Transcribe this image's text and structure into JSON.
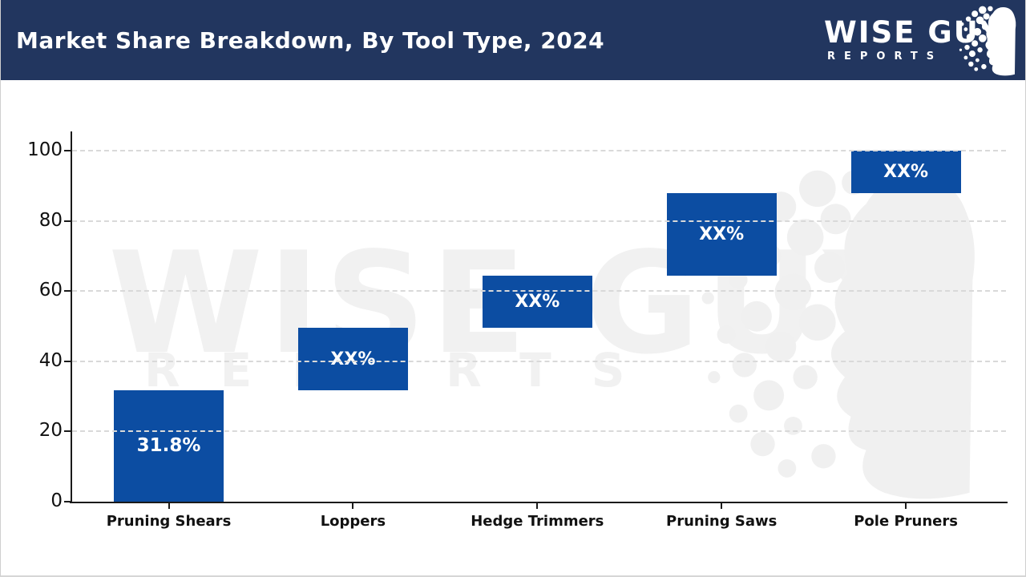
{
  "header": {
    "title": "Market Share Breakdown, By Tool Type, 2024",
    "bg_color": "#22365F",
    "logo": {
      "brand": "WISE GUY",
      "sub": "REPORTS",
      "face_icon": "dotted-face-profile"
    }
  },
  "watermark": {
    "brand": "WISE GUY",
    "sub": "REPORTS",
    "face_icon": "dotted-face-profile"
  },
  "chart_data": {
    "type": "bar",
    "variant": "floating-waterfall",
    "title": "Market Share Breakdown, By Tool Type, 2024",
    "categories": [
      "Pruning Shears",
      "Loppers",
      "Hedge Trimmers",
      "Pruning Saws",
      "Pole Pruners"
    ],
    "bars": [
      {
        "category": "Pruning Shears",
        "start": 0,
        "end": 31.8,
        "label": "31.8%"
      },
      {
        "category": "Loppers",
        "start": 31.8,
        "end": 49.5,
        "label": "XX%"
      },
      {
        "category": "Hedge Trimmers",
        "start": 49.5,
        "end": 64.5,
        "label": "XX%"
      },
      {
        "category": "Pruning Saws",
        "start": 64.5,
        "end": 88,
        "label": "XX%"
      },
      {
        "category": "Pole Pruners",
        "start": 88,
        "end": 100,
        "label": "XX%"
      }
    ],
    "xlabel": "",
    "ylabel": "",
    "ylim": [
      0,
      100
    ],
    "yticks": [
      0,
      20,
      40,
      60,
      80,
      100
    ],
    "grid": "horizontal-dashed",
    "legend": null,
    "bar_color": "#0C4DA2",
    "bar_label_color": "#FFFFFF",
    "axis_color": "#1a1a1a"
  }
}
